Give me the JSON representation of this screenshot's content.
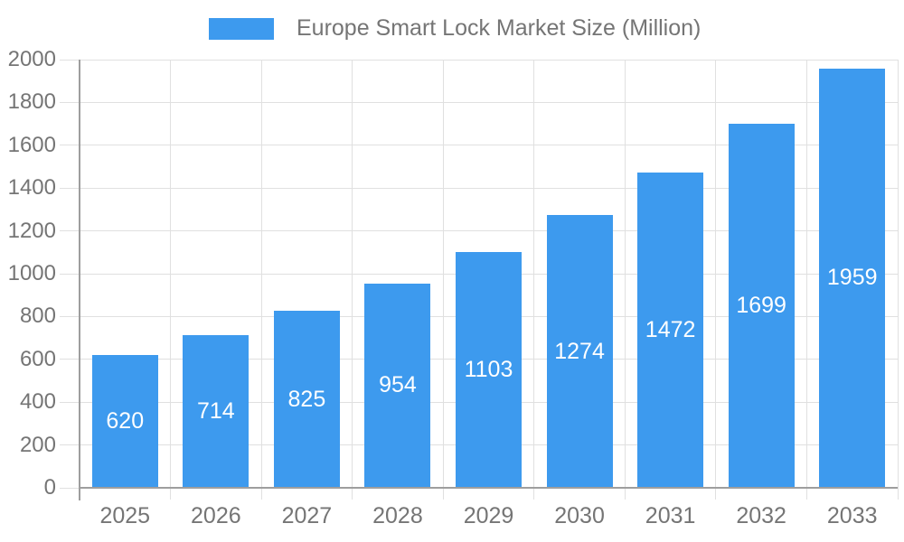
{
  "legend": {
    "label": "Europe Smart Lock Market Size (Million)"
  },
  "chart_data": {
    "type": "bar",
    "title": "Europe Smart Lock Market Size (Million)",
    "categories": [
      "2025",
      "2026",
      "2027",
      "2028",
      "2029",
      "2030",
      "2031",
      "2032",
      "2033"
    ],
    "values": [
      620,
      714,
      825,
      954,
      1103,
      1274,
      1472,
      1699,
      1959
    ],
    "xlabel": "",
    "ylabel": "",
    "ylim": [
      0,
      2000
    ],
    "yticks": [
      0,
      200,
      400,
      600,
      800,
      1000,
      1200,
      1400,
      1600,
      1800,
      2000
    ],
    "grid": true,
    "legend_position": "top",
    "bar_color": "#3d9aee",
    "value_label_color": "#ffffff",
    "text_color": "#757575",
    "grid_color": "#e0e0e0",
    "axis_color": "#9e9e9e"
  }
}
